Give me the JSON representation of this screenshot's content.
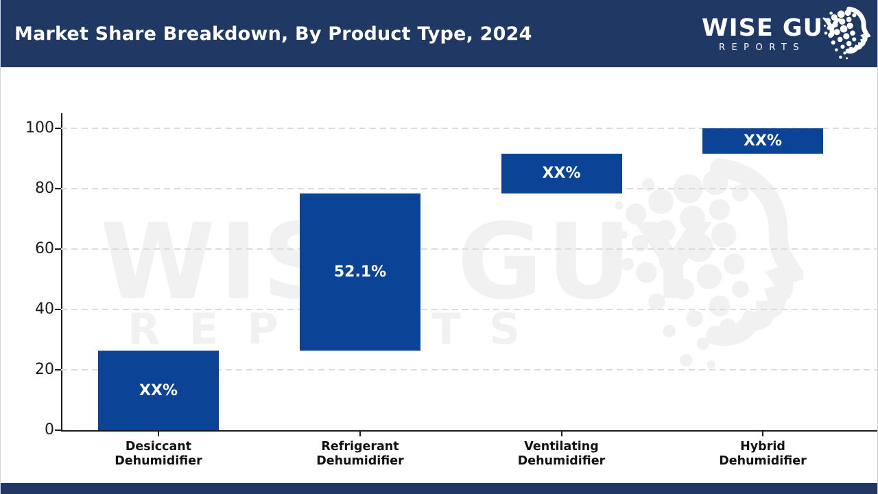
{
  "header": {
    "title": "Market Share Breakdown, By Product Type, 2024",
    "logo": {
      "line1": "WISE GUY",
      "line2": "REPORTS"
    }
  },
  "watermark": {
    "line1": "WISE GUY",
    "line2": "REPORTS"
  },
  "colors": {
    "header_navy": "#203864",
    "bar_blue": "#0b4397",
    "gridline": "#dcdcdc",
    "axis": "#1a1a1a",
    "bar_label_text": "#ffffff"
  },
  "chart_data": {
    "type": "bar",
    "subtype": "waterfall-floating-bars",
    "title": "Market Share Breakdown, By Product Type, 2024",
    "categories": [
      "Desiccant Dehumidifier",
      "Refrigerant Dehumidifier",
      "Ventilating Dehumidifier",
      "Hybrid Dehumidifier"
    ],
    "bars": [
      {
        "category_line1": "Desiccant",
        "category_line2": "Dehumidifier",
        "start": 0,
        "end": 26.3,
        "label": "XX%"
      },
      {
        "category_line1": "Refrigerant",
        "category_line2": "Dehumidifier",
        "start": 26.3,
        "end": 78.4,
        "label": "52.1%"
      },
      {
        "category_line1": "Ventilating",
        "category_line2": "Dehumidifier",
        "start": 78.4,
        "end": 91.6,
        "label": "XX%"
      },
      {
        "category_line1": "Hybrid",
        "category_line2": "Dehumidifier",
        "start": 91.6,
        "end": 100,
        "label": "XX%"
      }
    ],
    "xlabel": "",
    "ylabel": "",
    "ylim": [
      0,
      100
    ],
    "yticks": [
      0,
      20,
      40,
      60,
      80,
      100
    ],
    "grid": "horizontal-dashed",
    "legend": "none",
    "bar_color": "#0b4397"
  }
}
